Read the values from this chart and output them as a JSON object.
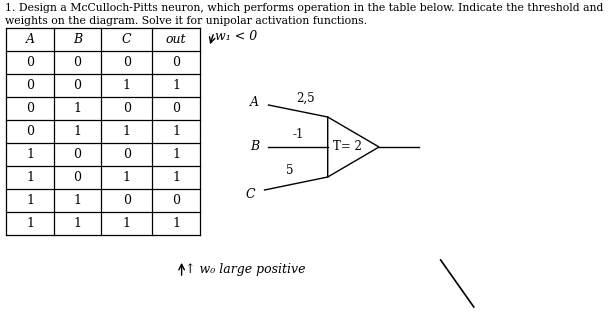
{
  "title_line1": "1. Design a McCulloch-Pitts neuron, which performs operation in the table below. Indicate the threshold and",
  "title_line2": "weights on the diagram. Solve it for unipolar activation functions.",
  "table_headers": [
    "A",
    "B",
    "C",
    "out"
  ],
  "table_data": [
    [
      0,
      0,
      0,
      0
    ],
    [
      0,
      0,
      1,
      1
    ],
    [
      0,
      1,
      0,
      0
    ],
    [
      0,
      1,
      1,
      1
    ],
    [
      1,
      0,
      0,
      1
    ],
    [
      1,
      0,
      1,
      1
    ],
    [
      1,
      1,
      0,
      0
    ],
    [
      1,
      1,
      1,
      1
    ]
  ],
  "neuron_label_A": "A",
  "neuron_label_B": "B",
  "neuron_label_C": "C",
  "weight_A": "2,5",
  "weight_B": "-1",
  "weight_C": "5",
  "threshold": "T= 2",
  "annotation_w1": "w₁ < 0",
  "annotation_bottom": "↑ w₀ large positive",
  "bg_color": "#ffffff",
  "text_color": "#000000"
}
